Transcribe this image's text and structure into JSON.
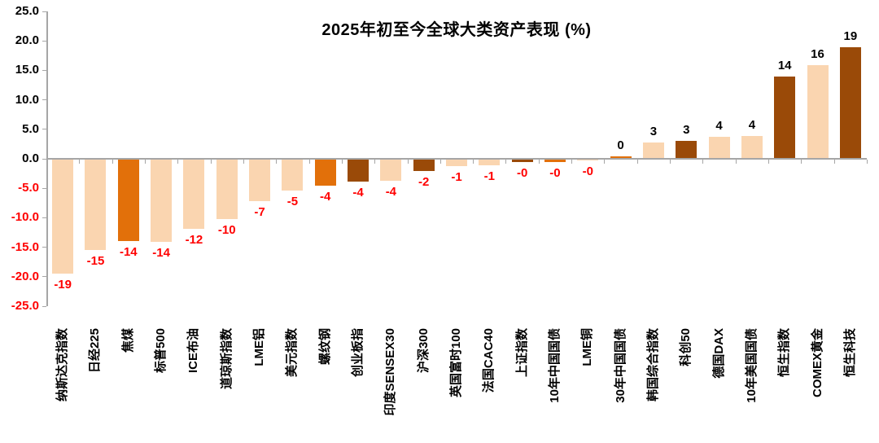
{
  "chart_data": {
    "type": "bar",
    "title": "2025年初至今全球大类资产表现 (%)",
    "xlabel": "",
    "ylabel": "",
    "ylim": [
      -25,
      25
    ],
    "ytick_step": 5,
    "ytick_labels": [
      "25.0",
      "20.0",
      "15.0",
      "10.0",
      "5.0",
      "0.0",
      "-5.0",
      "-10.0",
      "-15.0",
      "-20.0",
      "-25.0"
    ],
    "grid": false,
    "legend_position": "none",
    "categories": [
      "纳斯达克指数",
      "日经225",
      "焦煤",
      "标普500",
      "ICE布油",
      "道琼斯指数",
      "LME铝",
      "美元指数",
      "螺纹钢",
      "创业板指",
      "印度SENSEX30",
      "沪深300",
      "英国富时100",
      "法国CAC40",
      "上证指数",
      "10年中国国债",
      "LME铜",
      "30年中国国债",
      "韩国综合指数",
      "科创50",
      "德国DAX",
      "10年美国国债",
      "恒生指数",
      "COMEX黄金",
      "恒生科技"
    ],
    "values": [
      -19.3,
      -15.4,
      -13.8,
      -13.9,
      -11.8,
      -10.1,
      -7.0,
      -5.2,
      -4.4,
      -3.7,
      -3.6,
      -2.0,
      -1.1,
      -1.0,
      -0.4,
      -0.4,
      -0.05,
      0.4,
      2.7,
      3.0,
      3.7,
      3.9,
      13.9,
      15.9,
      18.9
    ],
    "value_labels": [
      "-19",
      "-15",
      "-14",
      "-14",
      "-12",
      "-10",
      "-7",
      "-5",
      "-4",
      "-4",
      "-4",
      "-2",
      "-1",
      "-1",
      "-0",
      "-0",
      "-0",
      "0",
      "3",
      "3",
      "4",
      "4",
      "14",
      "16",
      "19"
    ],
    "bar_color_keys": [
      "light",
      "light",
      "orange",
      "light",
      "light",
      "light",
      "light",
      "light",
      "orange",
      "brown",
      "light",
      "brown",
      "light",
      "light",
      "brown",
      "orange",
      "light",
      "orange",
      "light",
      "brown",
      "light",
      "light",
      "brown",
      "light",
      "brown"
    ]
  },
  "colors": {
    "bar_light": "#FAD5B0",
    "bar_orange": "#E2700A",
    "bar_brown": "#9A4A08",
    "label_negative": "#FF0000",
    "label_positive": "#000000",
    "axis_line": "#A6A6A6",
    "title_text": "#000000"
  }
}
